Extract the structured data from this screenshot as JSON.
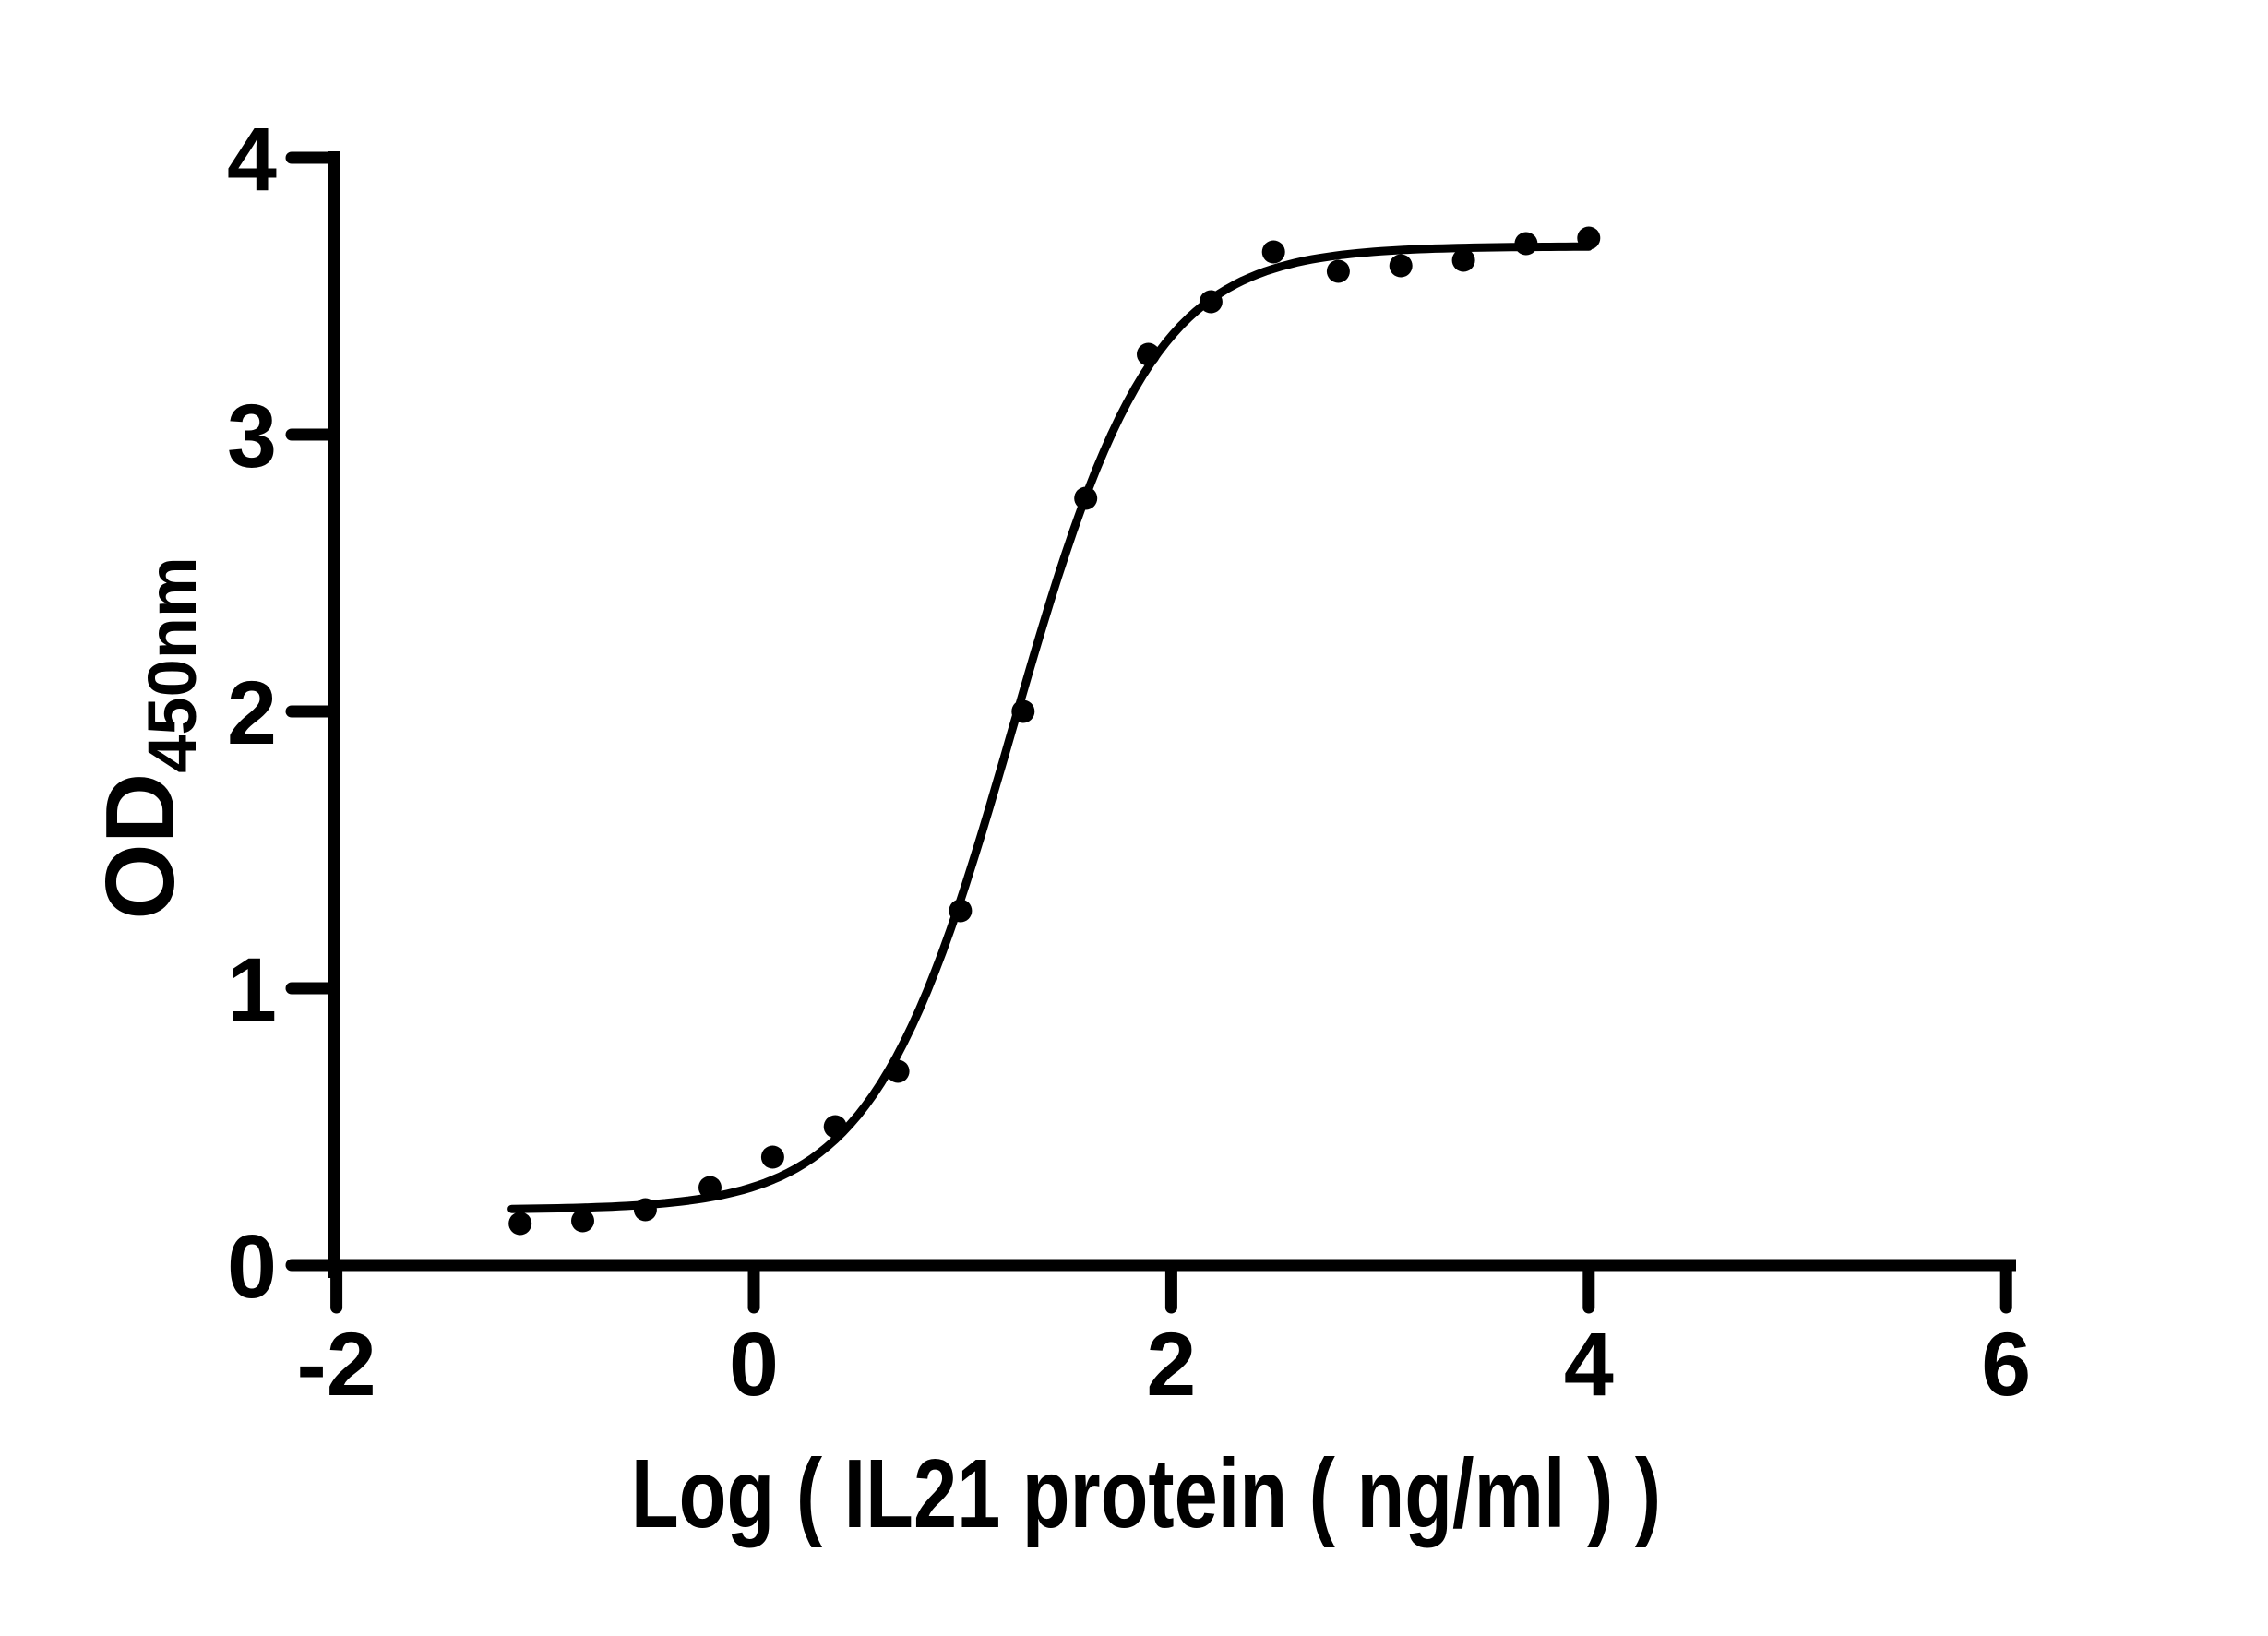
{
  "figure": {
    "background_color": "#ffffff",
    "ink_color": "#000000",
    "description": "ELISA activity dose-response curve, black scatter points with sigmoidal fit on white background"
  },
  "chart_data": {
    "type": "scatter",
    "title": "",
    "xlabel": "Log ( IL21 protein ( ng/ml )   )",
    "ylabel": "OD",
    "ylabel_subscript": "450nm",
    "xlim": [
      -2,
      6
    ],
    "ylim": [
      0,
      4
    ],
    "x_ticks": [
      -2,
      0,
      2,
      4,
      6
    ],
    "y_ticks": [
      0,
      1,
      2,
      3,
      4
    ],
    "grid": false,
    "legend": "none",
    "marker_color": "#000000",
    "line_color": "#000000",
    "x": [
      -1.12,
      -0.82,
      -0.52,
      -0.21,
      0.09,
      0.39,
      0.69,
      0.99,
      1.29,
      1.59,
      1.89,
      2.19,
      2.49,
      2.8,
      3.1,
      3.4,
      3.7,
      4.0
    ],
    "y": [
      0.15,
      0.16,
      0.2,
      0.28,
      0.39,
      0.5,
      0.7,
      1.28,
      2.0,
      2.77,
      3.29,
      3.48,
      3.66,
      3.59,
      3.61,
      3.63,
      3.69,
      3.71
    ],
    "fit_curve": {
      "model": "4PL",
      "bottom": 0.2,
      "top": 3.68,
      "log_ec50": 1.24,
      "hill": 1.3,
      "x_start": -1.16,
      "x_end": 4.0
    }
  }
}
